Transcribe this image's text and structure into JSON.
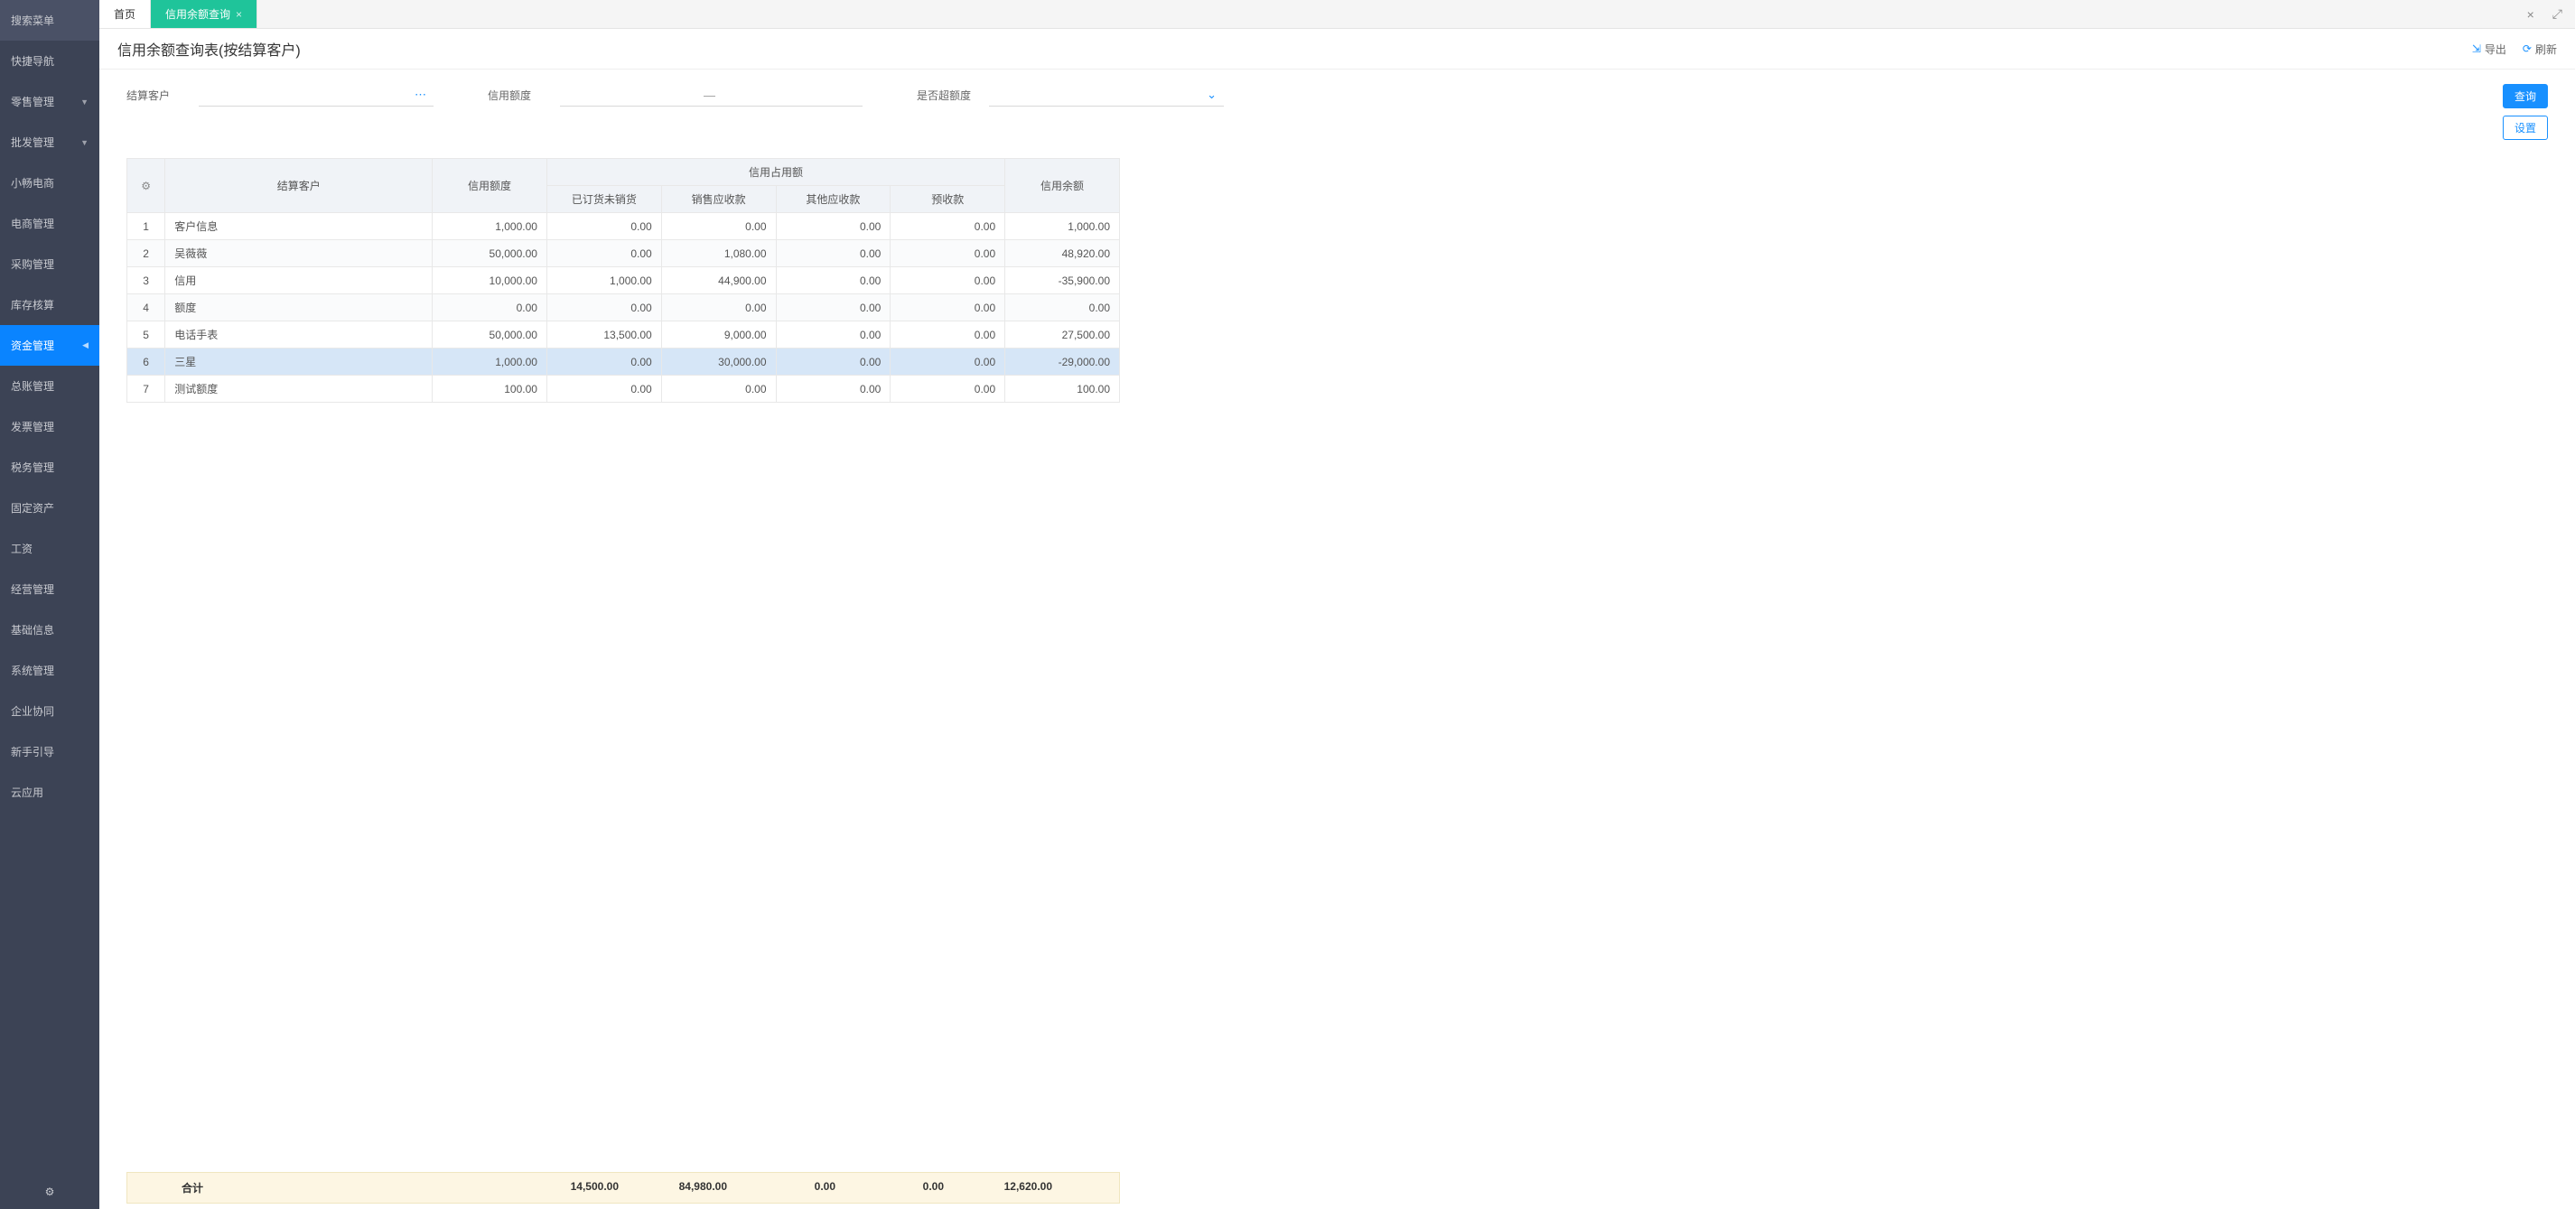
{
  "sidebar": {
    "items": [
      {
        "label": "搜索菜单",
        "has_caret": false
      },
      {
        "label": "快捷导航",
        "has_caret": false
      },
      {
        "label": "零售管理",
        "has_caret": true
      },
      {
        "label": "批发管理",
        "has_caret": true
      },
      {
        "label": "小畅电商",
        "has_caret": false
      },
      {
        "label": "电商管理",
        "has_caret": false
      },
      {
        "label": "采购管理",
        "has_caret": false
      },
      {
        "label": "库存核算",
        "has_caret": false
      },
      {
        "label": "资金管理",
        "has_caret": true,
        "active": true
      },
      {
        "label": "总账管理",
        "has_caret": false
      },
      {
        "label": "发票管理",
        "has_caret": false
      },
      {
        "label": "税务管理",
        "has_caret": false
      },
      {
        "label": "固定资产",
        "has_caret": false
      },
      {
        "label": "工资",
        "has_caret": false
      },
      {
        "label": "经营管理",
        "has_caret": false
      },
      {
        "label": "基础信息",
        "has_caret": false
      },
      {
        "label": "系统管理",
        "has_caret": false
      },
      {
        "label": "企业协同",
        "has_caret": false
      },
      {
        "label": "新手引导",
        "has_caret": false
      },
      {
        "label": "云应用",
        "has_caret": false
      }
    ]
  },
  "tabs": {
    "items": [
      {
        "label": "首页",
        "closable": false,
        "active": false
      },
      {
        "label": "信用余额查询",
        "closable": true,
        "active": true
      }
    ]
  },
  "header": {
    "title": "信用余额查询表(按结算客户)",
    "export_label": "导出",
    "refresh_label": "刷新"
  },
  "filters": {
    "customer_label": "结算客户",
    "credit_label": "信用额度",
    "credit_separator": "—",
    "exceed_label": "是否超额度",
    "search_btn": "查询",
    "settings_btn": "设置"
  },
  "table": {
    "columns": {
      "customer": "结算客户",
      "credit_limit": "信用额度",
      "occupied_group": "信用占用额",
      "ordered_unshipped": "已订货未销货",
      "sales_receivable": "销售应收款",
      "other_receivable": "其他应收款",
      "prepayment": "预收款",
      "credit_balance": "信用余额"
    },
    "rows": [
      {
        "idx": "1",
        "customer": "客户信息",
        "limit": "1,000.00",
        "ordered": "0.00",
        "sales": "0.00",
        "other": "0.00",
        "prepay": "0.00",
        "balance": "1,000.00",
        "neg": false
      },
      {
        "idx": "2",
        "customer": "吴薇薇",
        "limit": "50,000.00",
        "ordered": "0.00",
        "sales": "1,080.00",
        "other": "0.00",
        "prepay": "0.00",
        "balance": "48,920.00",
        "neg": false
      },
      {
        "idx": "3",
        "customer": "信用",
        "limit": "10,000.00",
        "ordered": "1,000.00",
        "sales": "44,900.00",
        "other": "0.00",
        "prepay": "0.00",
        "balance": "-35,900.00",
        "neg": true
      },
      {
        "idx": "4",
        "customer": "额度",
        "limit": "0.00",
        "ordered": "0.00",
        "sales": "0.00",
        "other": "0.00",
        "prepay": "0.00",
        "balance": "0.00",
        "neg": false
      },
      {
        "idx": "5",
        "customer": "电话手表",
        "limit": "50,000.00",
        "ordered": "13,500.00",
        "sales": "9,000.00",
        "other": "0.00",
        "prepay": "0.00",
        "balance": "27,500.00",
        "neg": false
      },
      {
        "idx": "6",
        "customer": "三星",
        "limit": "1,000.00",
        "ordered": "0.00",
        "sales": "30,000.00",
        "other": "0.00",
        "prepay": "0.00",
        "balance": "-29,000.00",
        "neg": true,
        "highlighted": true
      },
      {
        "idx": "7",
        "customer": "测试额度",
        "limit": "100.00",
        "ordered": "0.00",
        "sales": "0.00",
        "other": "0.00",
        "prepay": "0.00",
        "balance": "100.00",
        "neg": false
      }
    ],
    "footer": {
      "label": "合计",
      "ordered": "14,500.00",
      "sales": "84,980.00",
      "other": "0.00",
      "prepay": "0.00",
      "balance": "12,620.00"
    }
  },
  "colors": {
    "sidebar_bg": "#3c4355",
    "sidebar_active": "#0a84ff",
    "tab_active": "#1fc49a",
    "primary": "#1890ff",
    "negative": "#e74c3c",
    "footer_bg": "#fdf6e3"
  }
}
